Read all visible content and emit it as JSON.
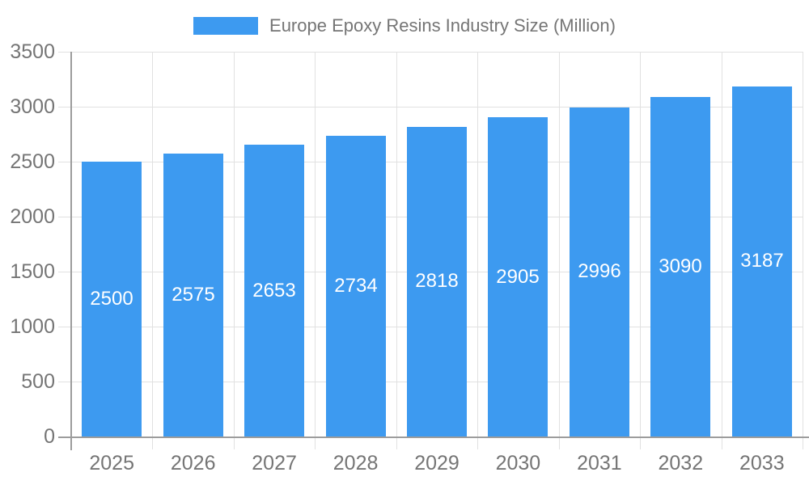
{
  "chart_data": {
    "type": "bar",
    "title": "Europe Epoxy Resins Industry Size (Million)",
    "legend": {
      "position": "top",
      "label": "Europe Epoxy Resins Industry Size (Million)"
    },
    "categories": [
      "2025",
      "2026",
      "2027",
      "2028",
      "2029",
      "2030",
      "2031",
      "2032",
      "2033"
    ],
    "values": [
      2500,
      2575,
      2653,
      2734,
      2818,
      2905,
      2996,
      3090,
      3187
    ],
    "xlabel": "",
    "ylabel": "",
    "ylim": [
      0,
      3500
    ],
    "yticks": [
      0,
      500,
      1000,
      1500,
      2000,
      2500,
      3000,
      3500
    ],
    "grid": true,
    "bar_labels_inside": true,
    "colors": {
      "bar": "#3D9AF0",
      "bar_label": "#FFFFFF",
      "grid": "#E1E1E1",
      "axis": "#9C9C9C",
      "tick_label": "#757575",
      "legend_text": "#757575",
      "background": "#FFFFFF"
    }
  }
}
